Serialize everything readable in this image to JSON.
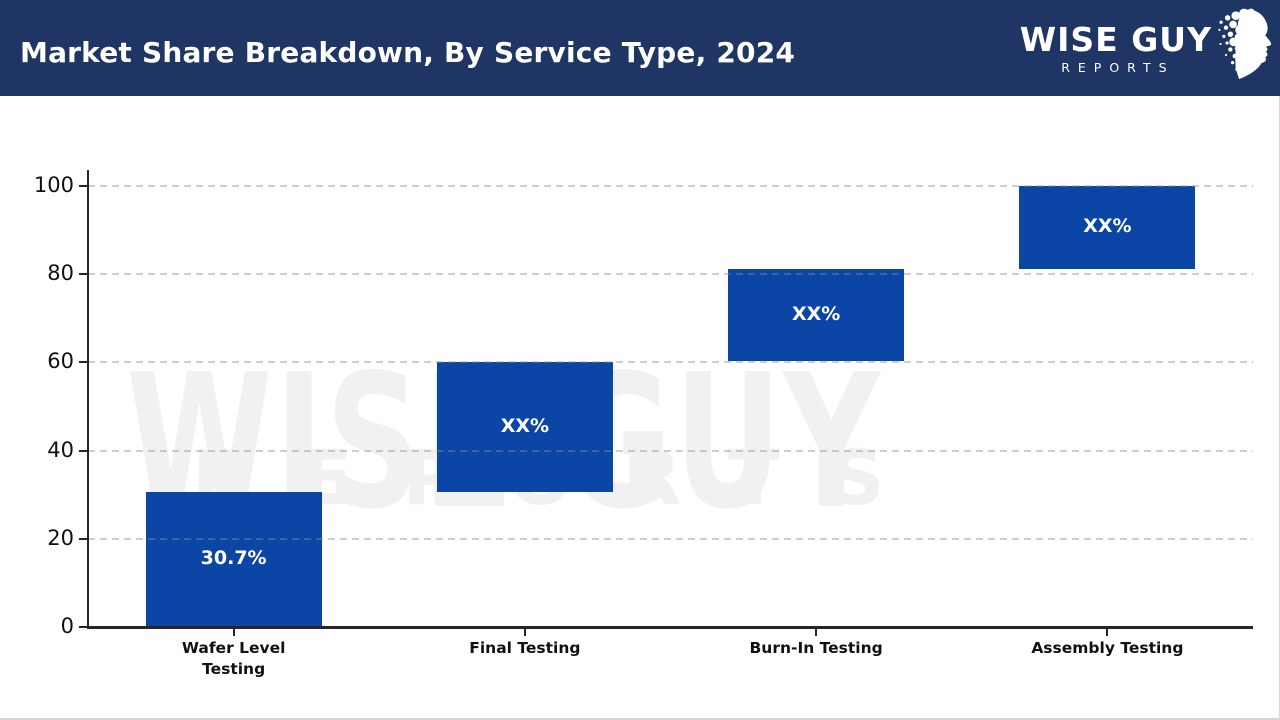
{
  "header": {
    "title": "Market Share Breakdown, By Service Type, 2024",
    "logo": {
      "wordmark": "WISE GUY",
      "subtext": "REPORTS"
    }
  },
  "watermark": {
    "wordmark": "WISE GUY",
    "subtext": "REPORTS"
  },
  "chart_data": {
    "type": "bar",
    "subtype": "floating-waterfall",
    "title": "Market Share Breakdown, By Service Type, 2024",
    "categories": [
      "Wafer Level\nTesting",
      "Final Testing",
      "Burn-In Testing",
      "Assembly Testing"
    ],
    "segments": [
      {
        "category": "Wafer Level\nTesting",
        "start": 0,
        "end": 30.7,
        "label": "30.7%"
      },
      {
        "category": "Final Testing",
        "start": 30.7,
        "end": 60,
        "label": "XX%"
      },
      {
        "category": "Burn-In Testing",
        "start": 60.3,
        "end": 81.2,
        "label": "XX%"
      },
      {
        "category": "Assembly Testing",
        "start": 81.2,
        "end": 100,
        "label": "XX%"
      }
    ],
    "xlabel": "",
    "ylabel": "",
    "ylim": [
      0,
      100
    ],
    "yticks": [
      0,
      20,
      40,
      60,
      80,
      100
    ],
    "grid": "horizontal-dashed",
    "legend": "none",
    "colors": {
      "bar": "#0b45a5",
      "bar_label": "#ffffff",
      "header_bg": "#1f3564",
      "axis": "#262626",
      "tick_label": "#111111",
      "watermark": "#f1f1f4"
    }
  }
}
